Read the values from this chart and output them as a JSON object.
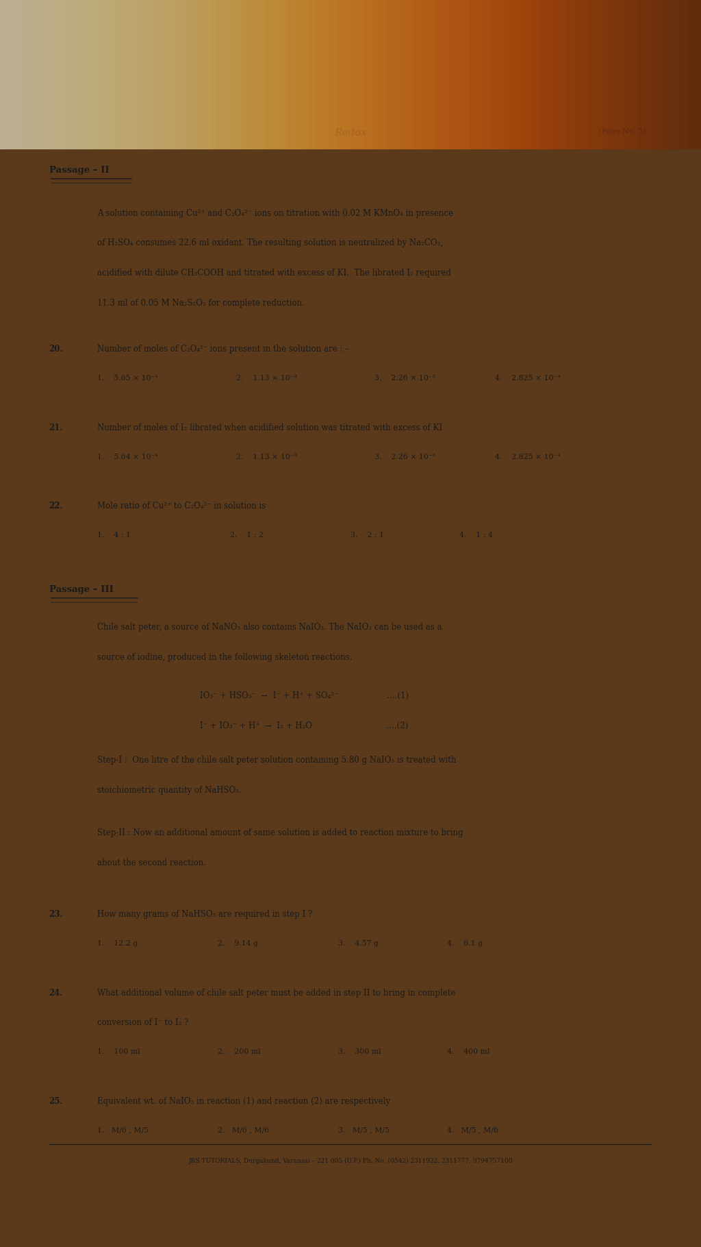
{
  "page_header_center": "Redox",
  "page_header_right": "[Page No. 5]",
  "passage2_title": "Passage – II",
  "passage2_text": "A solution containing Cu²⁺ and C₂O₄²⁻ ions on titration with 0.02 M KMnO₄ in presence\nof H₂SO₄ consumes 22.6 ml oxidant. The resulting solution is neutralized by Na₂CO₃,\nacidified with dilute CH₃COOH and titrated with excess of KI.  The librated I₂ required\n11.3 ml of 0.05 M Na₂S₂O₃ for complete reduction.",
  "q20_num": "20.",
  "q20_text": "Number of moles of C₂O₄²⁻ ions present in the solution are : –",
  "q20_opts": [
    "1.    5.65 × 10⁻⁴",
    "2.    1.13 × 10⁻³",
    "3.    2.26 × 10⁻³",
    "4.    2.825 × 10⁻⁴"
  ],
  "q21_num": "21.",
  "q21_text": "Number of moles of I₂ librated when acidified solution was titrated with excess of KI",
  "q21_opts": [
    "1.    5.64 × 10⁻⁴",
    "2.    1.13 × 10⁻³",
    "3.    2.26 × 10⁻³",
    "4.    2.825 × 10⁻⁴"
  ],
  "q22_num": "22.",
  "q22_text": "Mole ratio of Cu²⁺ to C₂O₄²⁻ in solution is",
  "q22_opts": [
    "1.    4 : 1",
    "2.    1 : 2",
    "3.    2 : 1",
    "4.    1 : 4"
  ],
  "passage3_title": "Passage – III",
  "passage3_text1": "Chile salt peter, a source of NaNO₃ also contains NaIO₃. The NaIO₃ can be used as a\nsource of iodine, produced in the following skeleton reactions.",
  "rxn1": "IO₃⁻ + HSO₃⁻  →  I⁻ + H⁺ + SO₄²⁻                   ....(1)",
  "rxn2": "I⁻ + IO₃⁻ + H⁺  →  I₂ + H₂O                             ....(2)",
  "passage3_text2": "Step-I :  One litre of the chile salt peter solution containing 5.80 g NaIO₃ is treated with\nstoichiometric quantity of NaHSO₃.",
  "passage3_text3": "Step-II : Now an additional amount of same solution is added to reaction mixture to bring\nabout the second reaction.",
  "q23_num": "23.",
  "q23_text": "How many grams of NaHSO₃ are required in step I ?",
  "q23_opts": [
    "1.    12.2 g",
    "2.    9.14 g",
    "3.    4.57 g",
    "4.    6.1 g"
  ],
  "q24_num": "24.",
  "q24_text": "What additional volume of chile salt peter must be added in step II to bring in complete\nconversion of I⁻ to I₂ ?",
  "q24_opts": [
    "1.    100 ml",
    "2.    200 ml",
    "3.    300 ml",
    "4.    400 ml"
  ],
  "q25_num": "25.",
  "q25_text": "Equivalent wt. of NaIO₃ in reaction (1) and reaction (2) are respectively",
  "q25_opts": [
    "1.   M/6 , M/5",
    "2.   M/6 , M/6",
    "3.   M/5 , M/5",
    "4.   M/5 , M/6"
  ],
  "footer": "JRS TUTORIALS, Durgakund, Varanasi – 221 005 (U.P.) Ph. No. (0542) 2311922, 2311777, 9794757100",
  "bg_color": "#e8e4dc",
  "text_color": "#1a1a1a",
  "paper_bg": "#f0ece3"
}
